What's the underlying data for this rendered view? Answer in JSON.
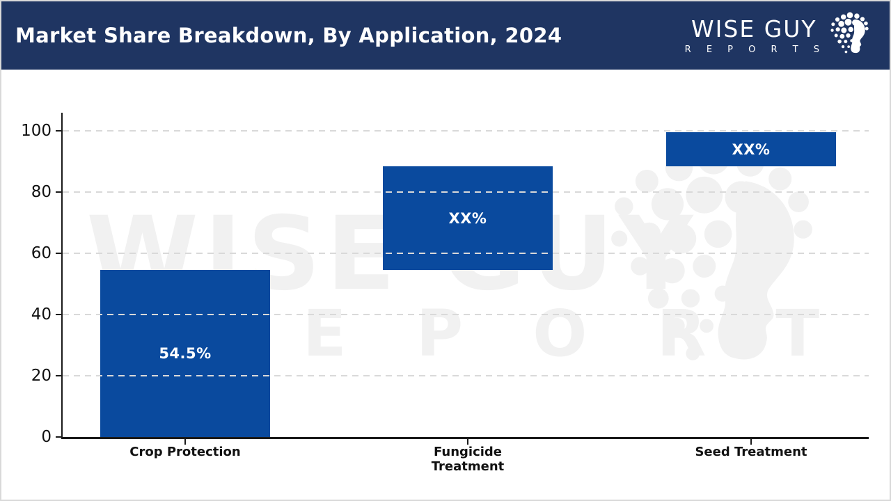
{
  "header": {
    "title": "Market Share Breakdown, By Application, 2024",
    "logo": {
      "wordmark": "WISE GUY",
      "subtext": "R E P O R T S"
    }
  },
  "watermark": {
    "line1": "WISE GUY",
    "line2": "R E P O R T S"
  },
  "chart_data": {
    "type": "bar",
    "subtype": "waterfall-floating-bars",
    "title": "Market Share Breakdown, By Application, 2024",
    "xlabel": "",
    "ylabel": "",
    "ylim": [
      0,
      100
    ],
    "yticks": [
      0,
      20,
      40,
      60,
      80,
      100
    ],
    "grid": "horizontal-dashed",
    "legend": "none",
    "categories": [
      "Crop Protection",
      "Fungicide\nTreatment",
      "Seed Treatment"
    ],
    "segments": [
      {
        "category": "Crop Protection",
        "start": 0,
        "end": 54.5,
        "label": "54.5%"
      },
      {
        "category": "Fungicide Treatment",
        "start": 54.5,
        "end": 88.4,
        "label": "XX%"
      },
      {
        "category": "Seed Treatment",
        "start": 88.4,
        "end": 99.5,
        "label": "XX%"
      }
    ],
    "colors": {
      "bar": "#0a4a9e",
      "bar_label": "#ffffff",
      "axis": "#1a1a1a",
      "gridline": "#d9d9d9",
      "tick_label": "#111111"
    }
  },
  "theme": {
    "header_bg": "#1f3562",
    "header_text": "#ffffff",
    "page_bg": "#ffffff",
    "border": "#d9d9d9",
    "watermark": "#f1f1f1"
  }
}
